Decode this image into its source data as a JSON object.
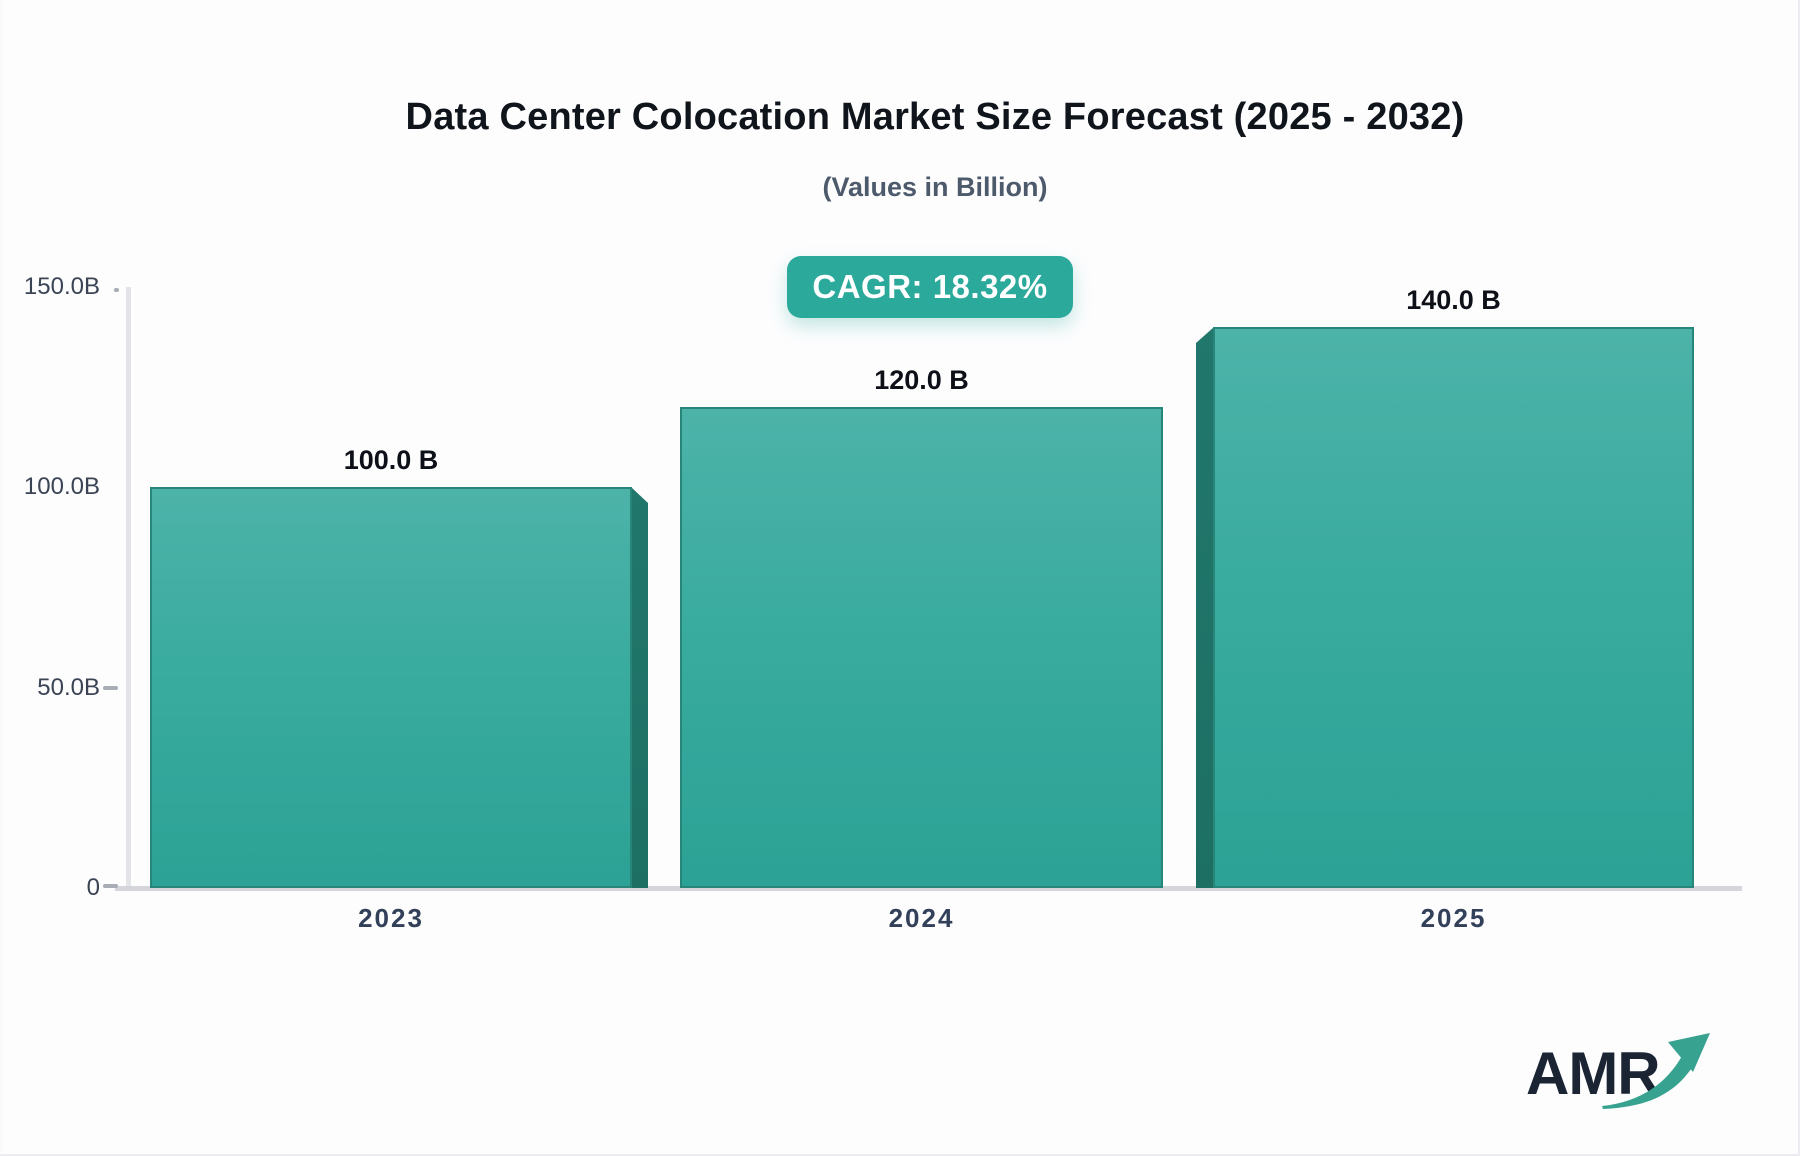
{
  "chart_data": {
    "type": "bar",
    "title": "Data Center Colocation Market Size Forecast (2025 - 2032)",
    "subtitle": "(Values in Billion)",
    "cagr_label": "CAGR: 18.32%",
    "categories": [
      "2023",
      "2024",
      "2025"
    ],
    "values": [
      100.0,
      120.0,
      140.0
    ],
    "value_labels": [
      "100.0 B",
      "120.0 B",
      "140.0 B"
    ],
    "xlabel": "",
    "ylabel": "",
    "ylim": [
      0,
      150
    ],
    "y_ticks": [
      {
        "label": "150.0B",
        "value": 150
      },
      {
        "label": "100.0B",
        "value": 100
      },
      {
        "label": "50.0B",
        "value": 50
      },
      {
        "label": "0",
        "value": 0
      }
    ],
    "grid": false,
    "legend": "none",
    "colors": {
      "bar_top": "#4db3a9",
      "bar_bottom": "#2ba295",
      "bar_side": "#1d6f63",
      "badge": "#2ba99b",
      "axis_line": "#e3e4e8",
      "title_text": "#10151c",
      "subtitle_text": "#4d5a6b"
    }
  },
  "branding": {
    "logo_text": "AMR"
  }
}
